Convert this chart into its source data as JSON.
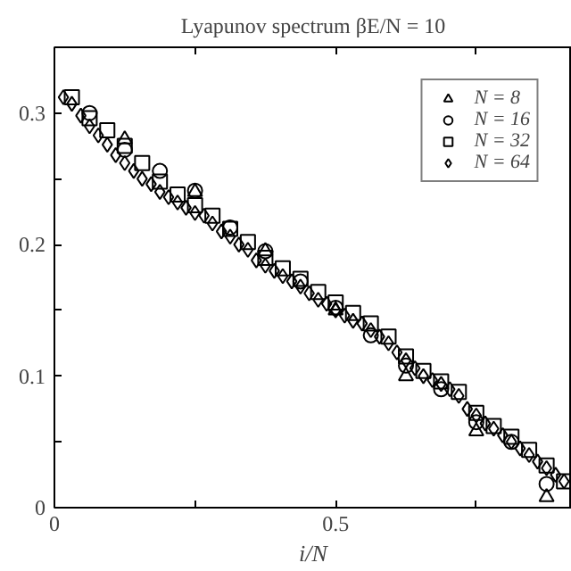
{
  "chart_data": {
    "type": "scatter",
    "title": "Lyapunov spectrum βE/N = 10",
    "xlabel": "i/N",
    "xlim": [
      0,
      0.92
    ],
    "ylim": [
      0,
      0.35
    ],
    "xticks": [
      0,
      {
        "value": 0.25,
        "label": null
      },
      0.5,
      {
        "value": 0.75,
        "label": null
      }
    ],
    "yticks": [
      0,
      {
        "value": 0.05,
        "label": null
      },
      0.1,
      {
        "value": 0.15,
        "label": null
      },
      0.2,
      {
        "value": 0.25,
        "label": null
      },
      0.3
    ],
    "grid": false,
    "legend": "top right",
    "series": [
      {
        "name": "N = 8",
        "color": "#000000",
        "marker": "triangle",
        "x": [
          0.125,
          0.25,
          0.375,
          0.5,
          0.625,
          0.75,
          0.875
        ],
        "values": [
          0.28,
          0.24,
          0.195,
          0.15,
          0.1,
          0.058,
          0.008
        ]
      },
      {
        "name": "N = 16",
        "color": "#000000",
        "marker": "circle",
        "x": [
          0.0625,
          0.125,
          0.1875,
          0.25,
          0.3125,
          0.375,
          0.4375,
          0.5,
          0.5625,
          0.625,
          0.6875,
          0.75,
          0.8125,
          0.875
        ],
        "values": [
          0.3,
          0.272,
          0.256,
          0.241,
          0.213,
          0.195,
          0.172,
          0.152,
          0.131,
          0.108,
          0.09,
          0.065,
          0.05,
          0.018
        ]
      },
      {
        "name": "N = 32",
        "color": "#000000",
        "marker": "square",
        "x": [
          0.031,
          0.0625,
          0.094,
          0.125,
          0.156,
          0.1875,
          0.219,
          0.25,
          0.281,
          0.3125,
          0.344,
          0.375,
          0.406,
          0.4375,
          0.469,
          0.5,
          0.531,
          0.5625,
          0.594,
          0.625,
          0.656,
          0.6875,
          0.719,
          0.75,
          0.781,
          0.8125,
          0.844,
          0.875,
          0.906
        ],
        "values": [
          0.312,
          0.296,
          0.287,
          0.275,
          0.262,
          0.248,
          0.238,
          0.23,
          0.222,
          0.212,
          0.202,
          0.19,
          0.182,
          0.174,
          0.164,
          0.156,
          0.148,
          0.14,
          0.13,
          0.115,
          0.104,
          0.096,
          0.088,
          0.072,
          0.062,
          0.054,
          0.044,
          0.032,
          0.02
        ]
      },
      {
        "name": "N = 64",
        "color": "#000000",
        "marker": "diamond",
        "x": [
          0.016,
          0.031,
          0.047,
          0.0625,
          0.078,
          0.094,
          0.109,
          0.125,
          0.141,
          0.156,
          0.172,
          0.1875,
          0.203,
          0.219,
          0.234,
          0.25,
          0.266,
          0.281,
          0.297,
          0.3125,
          0.328,
          0.344,
          0.359,
          0.375,
          0.391,
          0.406,
          0.422,
          0.4375,
          0.453,
          0.469,
          0.484,
          0.5,
          0.516,
          0.531,
          0.547,
          0.5625,
          0.578,
          0.594,
          0.609,
          0.625,
          0.641,
          0.656,
          0.672,
          0.6875,
          0.703,
          0.719,
          0.734,
          0.75,
          0.766,
          0.781,
          0.797,
          0.8125,
          0.828,
          0.844,
          0.859,
          0.875,
          0.891,
          0.906
        ],
        "values": [
          0.312,
          0.307,
          0.298,
          0.29,
          0.283,
          0.276,
          0.268,
          0.262,
          0.256,
          0.25,
          0.246,
          0.24,
          0.236,
          0.232,
          0.228,
          0.224,
          0.222,
          0.216,
          0.21,
          0.206,
          0.2,
          0.196,
          0.188,
          0.184,
          0.18,
          0.176,
          0.172,
          0.168,
          0.163,
          0.158,
          0.155,
          0.15,
          0.146,
          0.142,
          0.14,
          0.135,
          0.13,
          0.125,
          0.118,
          0.112,
          0.106,
          0.1,
          0.097,
          0.094,
          0.09,
          0.085,
          0.075,
          0.07,
          0.064,
          0.06,
          0.055,
          0.05,
          0.045,
          0.04,
          0.035,
          0.03,
          0.025,
          0.02
        ]
      }
    ]
  }
}
